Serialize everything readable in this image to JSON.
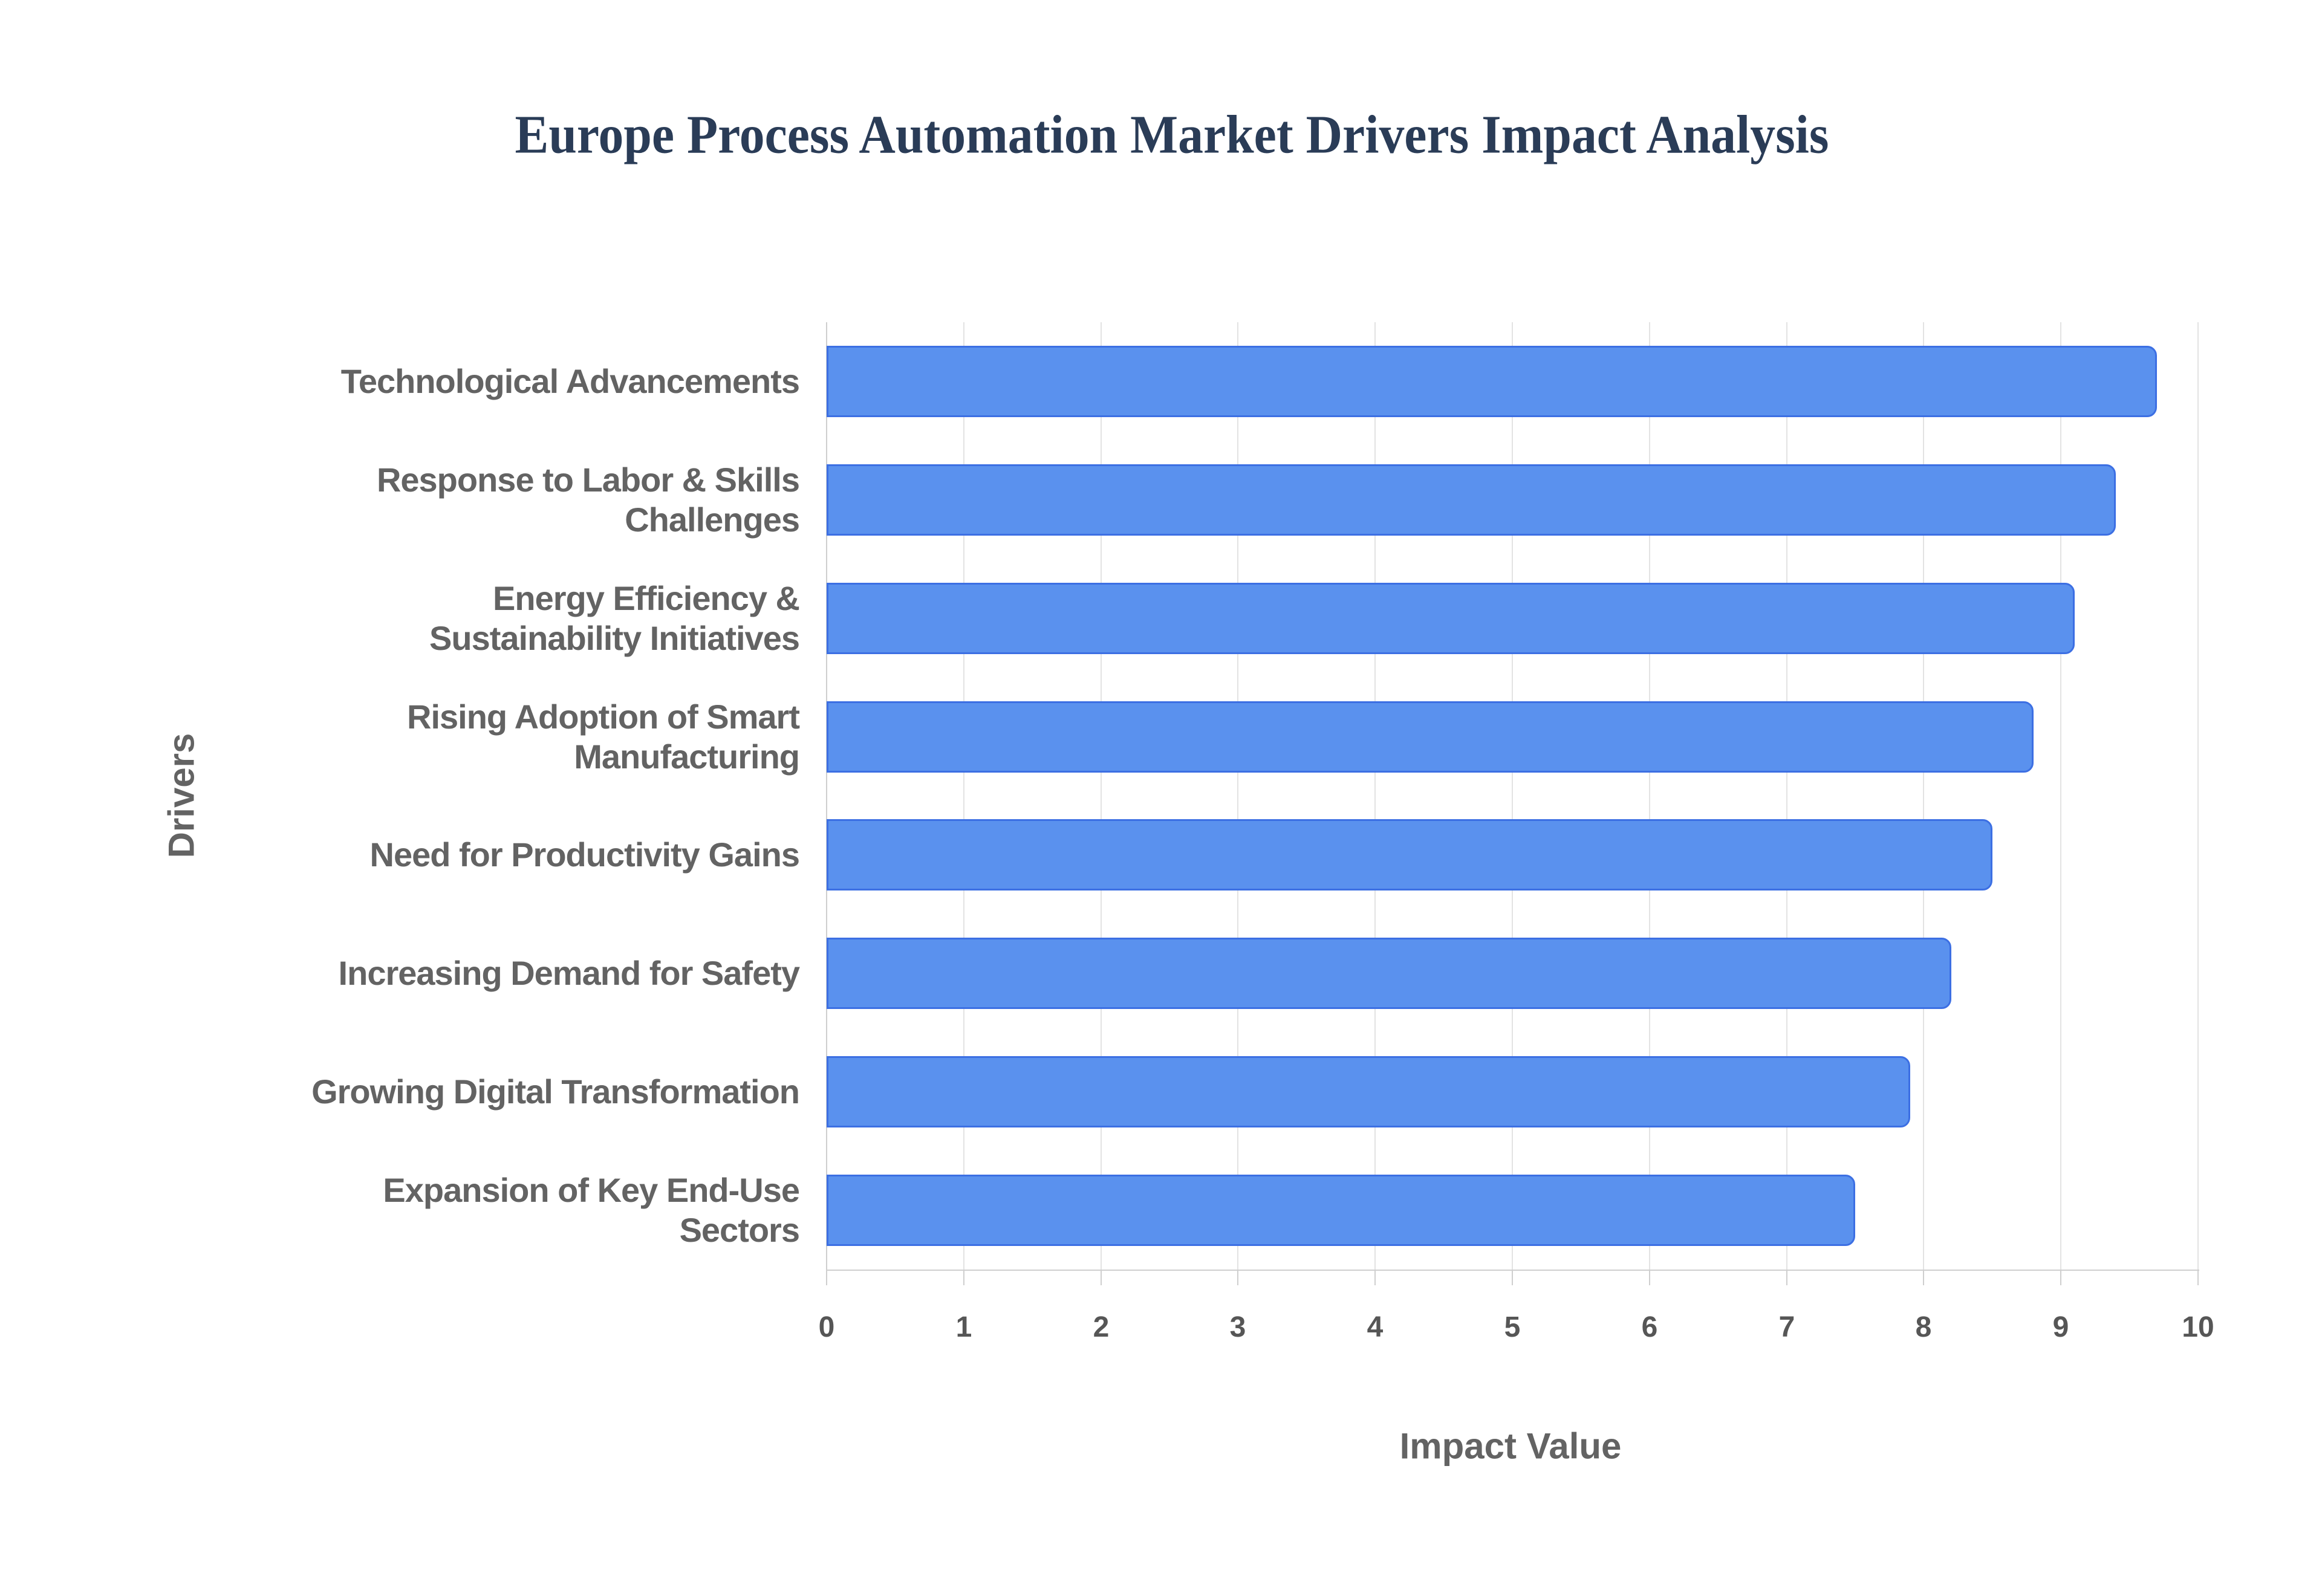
{
  "chart_data": {
    "type": "bar",
    "orientation": "horizontal",
    "title": "Europe Process Automation Market Drivers Impact Analysis",
    "xlabel": "Impact Value",
    "ylabel": "Drivers",
    "xlim": [
      0,
      10
    ],
    "xticks": [
      0,
      1,
      2,
      3,
      4,
      5,
      6,
      7,
      8,
      9,
      10
    ],
    "grid": true,
    "legend": false,
    "categories": [
      "Technological Advancements",
      "Response to Labor & Skills Challenges",
      "Energy Efficiency & Sustainability Initiatives",
      "Rising Adoption of Smart Manufacturing",
      "Need for Productivity Gains",
      "Increasing Demand for Safety",
      "Growing Digital Transformation",
      "Expansion of Key End-Use Sectors"
    ],
    "category_lines": [
      [
        "Technological Advancements"
      ],
      [
        "Response to Labor & Skills",
        "Challenges"
      ],
      [
        "Energy Efficiency &",
        "Sustainability Initiatives"
      ],
      [
        "Rising Adoption of Smart",
        "Manufacturing"
      ],
      [
        "Need for Productivity Gains"
      ],
      [
        "Increasing Demand for Safety"
      ],
      [
        "Growing Digital Transformation"
      ],
      [
        "Expansion of Key End-Use",
        "Sectors"
      ]
    ],
    "values": [
      9.7,
      9.4,
      9.1,
      8.8,
      8.5,
      8.2,
      7.9,
      7.5
    ],
    "colors": {
      "bar_fill": "#5A91EE",
      "bar_border": "#3C6FE3",
      "gridline": "#e3e3e3",
      "axis_line": "#cfcfcf",
      "title_text": "#2a3c57",
      "label_text": "#636363",
      "tick_text": "#565656",
      "background": "#ffffff"
    }
  }
}
